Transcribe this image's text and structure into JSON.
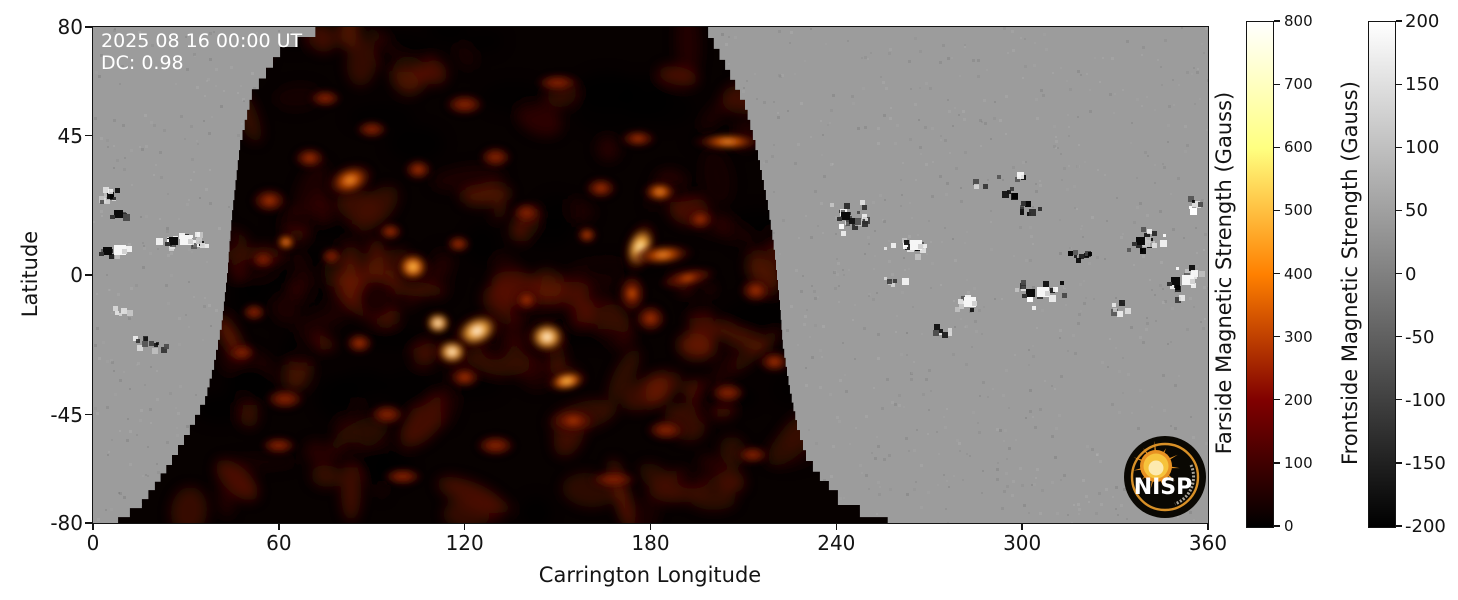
{
  "figure": {
    "overlay": {
      "line1": "2025 08 16 00:00 UT",
      "line2": "DC: 0.98"
    },
    "axes": {
      "xlabel": "Carrington Longitude",
      "ylabel": "Latitude",
      "x_ticks": [
        0,
        60,
        120,
        180,
        240,
        300,
        360
      ],
      "y_ticks": [
        80,
        45,
        0,
        -45,
        -80
      ],
      "xlim": [
        0,
        360
      ],
      "ylim": [
        -80,
        80
      ]
    },
    "colorbars": [
      {
        "id": "farside",
        "label": "Farside Magnetic Strength (Gauss)",
        "min": 0,
        "max": 800,
        "ticks": [
          0,
          100,
          200,
          300,
          400,
          500,
          600,
          700,
          800
        ],
        "colormap": "afmhot"
      },
      {
        "id": "frontside",
        "label": "Frontside Magnetic Strength (Gauss)",
        "min": -200,
        "max": 200,
        "ticks": [
          -200,
          -150,
          -100,
          -50,
          0,
          50,
          100,
          150,
          200
        ],
        "colormap": "gray"
      }
    ],
    "logo": {
      "text": "NISP"
    },
    "colors": {
      "quiet_sun": "#9c9c9c",
      "farside_bg": "#070100",
      "spine": "#141414",
      "overlay_text": "#ffffff",
      "logo_ring": "#d89027",
      "logo_sun_outer": "#e89223",
      "logo_sun_mid": "#f6c33c",
      "logo_sun_core": "#fdeab0"
    }
  },
  "chart_data": {
    "type": "heatmap",
    "description": "Combined solar magnetic map in Carrington coordinates: central region is the helioseismic farside magnetic strength (afmhot colormap, 0-800 Gauss); flanking regions are the frontside magnetogram (gray colormap, -200 to +200 Gauss).",
    "farside_boundary": [
      [
        77.5,
        80
      ],
      [
        60.4,
        70.3
      ],
      [
        51.3,
        56.5
      ],
      [
        47.5,
        40.3
      ],
      [
        44.9,
        17.7
      ],
      [
        43.6,
        0.6
      ],
      [
        41.6,
        -17.7
      ],
      [
        39.1,
        -30.6
      ],
      [
        36.2,
        -41.9
      ],
      [
        31.3,
        -51.6
      ],
      [
        25.5,
        -61.3
      ],
      [
        20.0,
        -69.4
      ],
      [
        15.8,
        -75.2
      ],
      [
        11.9,
        -78.1
      ],
      [
        8.1,
        -79.4
      ],
      [
        8.1,
        -80
      ],
      [
        257.3,
        -80
      ],
      [
        256.6,
        -78.1
      ],
      [
        247.6,
        -74.2
      ],
      [
        240.5,
        -69.4
      ],
      [
        234.7,
        -63.5
      ],
      [
        230.2,
        -56.5
      ],
      [
        227.3,
        -46.8
      ],
      [
        225.0,
        -35.5
      ],
      [
        222.7,
        -20.9
      ],
      [
        221.8,
        -8.1
      ],
      [
        220.2,
        8.1
      ],
      [
        217.9,
        24.2
      ],
      [
        214.7,
        40.3
      ],
      [
        210.5,
        56.5
      ],
      [
        204.1,
        69.4
      ],
      [
        198.6,
        80
      ]
    ],
    "farside_active_regions": [
      [
        83,
        30.6,
        430,
        14,
        9,
        -20
      ],
      [
        70,
        37.7,
        300,
        9,
        6,
        0
      ],
      [
        62.3,
        10.6,
        430,
        6,
        5,
        0
      ],
      [
        57,
        24,
        230,
        10,
        7,
        0
      ],
      [
        103.3,
        2.6,
        620,
        10,
        9,
        0
      ],
      [
        111.4,
        -15.5,
        760,
        8,
        7,
        0
      ],
      [
        124,
        -18,
        800,
        15,
        10,
        -25
      ],
      [
        115.9,
        -24.8,
        790,
        10,
        8,
        0
      ],
      [
        146.6,
        -20,
        800,
        12,
        10,
        0
      ],
      [
        153,
        -34.2,
        520,
        12,
        6,
        -10
      ],
      [
        176.6,
        9,
        700,
        9,
        15,
        20
      ],
      [
        184,
        6.5,
        460,
        17,
        6,
        -5
      ],
      [
        192,
        -1,
        340,
        16,
        5,
        -12
      ],
      [
        159.5,
        12.9,
        310,
        6,
        5,
        0
      ],
      [
        183,
        26.8,
        430,
        10,
        6,
        0
      ],
      [
        205,
        43,
        400,
        20,
        5,
        0
      ],
      [
        174,
        -6,
        330,
        8,
        11,
        0
      ],
      [
        180,
        -14,
        300,
        9,
        8,
        0
      ],
      [
        105,
        34,
        260,
        8,
        6,
        0
      ],
      [
        90,
        47,
        210,
        9,
        5,
        0
      ],
      [
        120,
        55,
        190,
        11,
        6,
        0
      ],
      [
        140,
        20,
        200,
        8,
        6,
        0
      ],
      [
        150,
        62,
        180,
        12,
        5,
        0
      ],
      [
        75,
        57,
        180,
        9,
        5,
        0
      ],
      [
        55,
        5,
        200,
        7,
        5,
        0
      ],
      [
        52,
        -12,
        190,
        7,
        5,
        0
      ],
      [
        48,
        -25,
        180,
        8,
        5,
        0
      ],
      [
        155,
        -47,
        230,
        13,
        7,
        0
      ],
      [
        130,
        -55,
        190,
        11,
        6,
        0
      ],
      [
        95,
        -45,
        200,
        10,
        6,
        0
      ],
      [
        62,
        -40,
        190,
        11,
        6,
        0
      ],
      [
        185,
        -50,
        210,
        11,
        6,
        0
      ],
      [
        213,
        -58,
        180,
        9,
        5,
        0
      ],
      [
        100,
        -65,
        180,
        11,
        5,
        0
      ],
      [
        168,
        -66,
        190,
        13,
        5,
        0
      ],
      [
        120,
        -33,
        240,
        9,
        6,
        0
      ],
      [
        86,
        -22,
        230,
        8,
        6,
        0
      ],
      [
        140,
        -8,
        250,
        7,
        6,
        0
      ],
      [
        164,
        28,
        240,
        9,
        6,
        0
      ],
      [
        196,
        18,
        260,
        8,
        6,
        0
      ],
      [
        214,
        -5,
        270,
        9,
        7,
        0
      ],
      [
        220,
        -28,
        230,
        9,
        6,
        0
      ],
      [
        205,
        -38,
        220,
        10,
        6,
        0
      ],
      [
        118,
        10,
        230,
        7,
        5,
        0
      ],
      [
        96,
        14,
        240,
        7,
        5,
        0
      ],
      [
        130,
        38,
        220,
        9,
        6,
        0
      ],
      [
        176,
        44,
        230,
        10,
        5,
        0
      ],
      [
        60,
        -55,
        170,
        10,
        5,
        0
      ],
      [
        77,
        6,
        220,
        6,
        5,
        0
      ]
    ],
    "farside_mottle": {
      "count": 150,
      "void_count": 60,
      "seed": 7
    },
    "frontside_regions": [
      {
        "lon": 3.9,
        "lat": 25.8,
        "lon_span": 9,
        "lat_span": 6,
        "count": 14,
        "white_fraction": 0.55,
        "core": null
      },
      {
        "lon": 9.7,
        "lat": 20,
        "lon_span": 3,
        "lat_span": 3,
        "count": 3,
        "white_fraction": 0.05,
        "core": "black"
      },
      {
        "lon": 27.4,
        "lat": 11.3,
        "lon_span": 21,
        "lat_span": 7,
        "count": 24,
        "white_fraction": 0.6,
        "core": "both"
      },
      {
        "lon": 6.1,
        "lat": 8.1,
        "lon_span": 10,
        "lat_span": 4,
        "count": 9,
        "white_fraction": 0.5,
        "core": "both"
      },
      {
        "lon": 18.4,
        "lat": -21.6,
        "lon_span": 18,
        "lat_span": 6,
        "count": 12,
        "white_fraction": 0.35,
        "core": null
      },
      {
        "lon": 9.4,
        "lat": -11.3,
        "lon_span": 8,
        "lat_span": 4,
        "count": 6,
        "white_fraction": 0.4,
        "core": null
      },
      {
        "lon": 244.4,
        "lat": 19.4,
        "lon_span": 15,
        "lat_span": 11,
        "count": 22,
        "white_fraction": 0.4,
        "core": "black"
      },
      {
        "lon": 263.1,
        "lat": 9.7,
        "lon_span": 18,
        "lat_span": 7,
        "count": 16,
        "white_fraction": 0.65,
        "core": "white"
      },
      {
        "lon": 273.4,
        "lat": -17.7,
        "lon_span": 13,
        "lat_span": 5,
        "count": 7,
        "white_fraction": 0.5,
        "core": null
      },
      {
        "lon": 280.5,
        "lat": -8.7,
        "lon_span": 15,
        "lat_span": 6,
        "count": 10,
        "white_fraction": 0.7,
        "core": "white"
      },
      {
        "lon": 293.5,
        "lat": 30,
        "lon_span": 23,
        "lat_span": 9,
        "count": 12,
        "white_fraction": 0.3,
        "core": null
      },
      {
        "lon": 304.1,
        "lat": -5.5,
        "lon_span": 19,
        "lat_span": 10,
        "count": 18,
        "white_fraction": 0.45,
        "core": "both"
      },
      {
        "lon": 318.6,
        "lat": 7.4,
        "lon_span": 13,
        "lat_span": 6,
        "count": 9,
        "white_fraction": 0.4,
        "core": null
      },
      {
        "lon": 339.6,
        "lat": 11.3,
        "lon_span": 18,
        "lat_span": 10,
        "count": 20,
        "white_fraction": 0.45,
        "core": "black"
      },
      {
        "lon": 350.9,
        "lat": -1.6,
        "lon_span": 15,
        "lat_span": 14,
        "count": 16,
        "white_fraction": 0.6,
        "core": "both"
      },
      {
        "lon": 354.2,
        "lat": 24.2,
        "lon_span": 10,
        "lat_span": 6,
        "count": 9,
        "white_fraction": 0.5,
        "core": null
      },
      {
        "lon": 300,
        "lat": 22,
        "lon_span": 15,
        "lat_span": 7,
        "count": 8,
        "white_fraction": 0.35,
        "core": null
      },
      {
        "lon": 330,
        "lat": -10,
        "lon_span": 12,
        "lat_span": 6,
        "count": 7,
        "white_fraction": 0.5,
        "core": null
      },
      {
        "lon": 257,
        "lat": -2,
        "lon_span": 10,
        "lat_span": 5,
        "count": 6,
        "white_fraction": 0.5,
        "core": null
      }
    ],
    "background_noise": {
      "count": 1700,
      "seed": 11
    }
  }
}
